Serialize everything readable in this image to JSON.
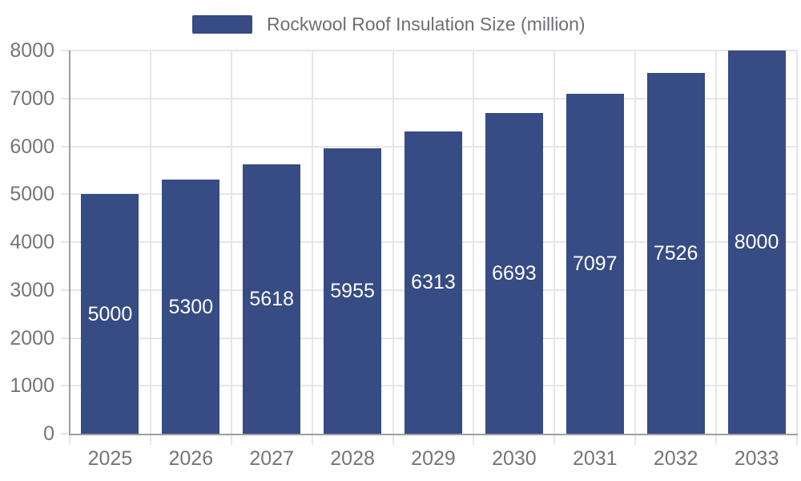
{
  "chart_data": {
    "type": "bar",
    "title": "",
    "series_name": "Rockwool Roof Insulation Size (million)",
    "categories": [
      "2025",
      "2026",
      "2027",
      "2028",
      "2029",
      "2030",
      "2031",
      "2032",
      "2033"
    ],
    "values": [
      5000,
      5300,
      5618,
      5955,
      6313,
      6693,
      7097,
      7526,
      8000
    ],
    "bar_labels": [
      "5000",
      "5300",
      "5618",
      "5955",
      "6313",
      "6693",
      "7097",
      "7526",
      "8000"
    ],
    "xlabel": "",
    "ylabel": "",
    "ylim": [
      0,
      8000
    ],
    "yticks": [
      0,
      1000,
      2000,
      3000,
      4000,
      5000,
      6000,
      7000,
      8000
    ],
    "legend_position": "top",
    "grid": true,
    "colors": {
      "bar": "#374B84",
      "bar_label": "#ffffff",
      "axis_line": "#9e9e9e",
      "grid_line": "#e6e6e6",
      "tick_label": "#757575",
      "legend_text": "#6f6f73",
      "background": "#ffffff"
    }
  }
}
